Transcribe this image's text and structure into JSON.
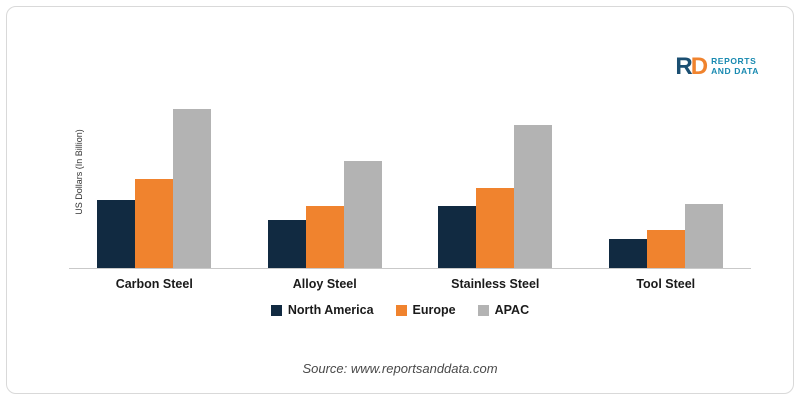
{
  "logo": {
    "monogram_r": "R",
    "monogram_d": "D",
    "line1": "REPORTS",
    "line2": "AND DATA"
  },
  "axis": {
    "y_label": "US Dollars  (In Billion)"
  },
  "source": {
    "text": "Source: www.reportsanddata.com"
  },
  "chart_data": {
    "type": "bar",
    "title": "",
    "categories": [
      "Carbon Steel",
      "Alloy Steel",
      "Stainless Steel",
      "Tool Steel"
    ],
    "series": [
      {
        "name": "North America",
        "color": "#112a41",
        "values": [
          43,
          30,
          39,
          18
        ]
      },
      {
        "name": "Europe",
        "color": "#f0832e",
        "values": [
          56,
          39,
          50,
          24
        ]
      },
      {
        "name": "APAC",
        "color": "#b3b3b3",
        "values": [
          100,
          67,
          90,
          40
        ]
      }
    ],
    "xlabel": "",
    "ylabel": "US Dollars (In Billion)",
    "ylim": [
      0,
      110
    ],
    "grid": false,
    "legend_position": "bottom"
  }
}
